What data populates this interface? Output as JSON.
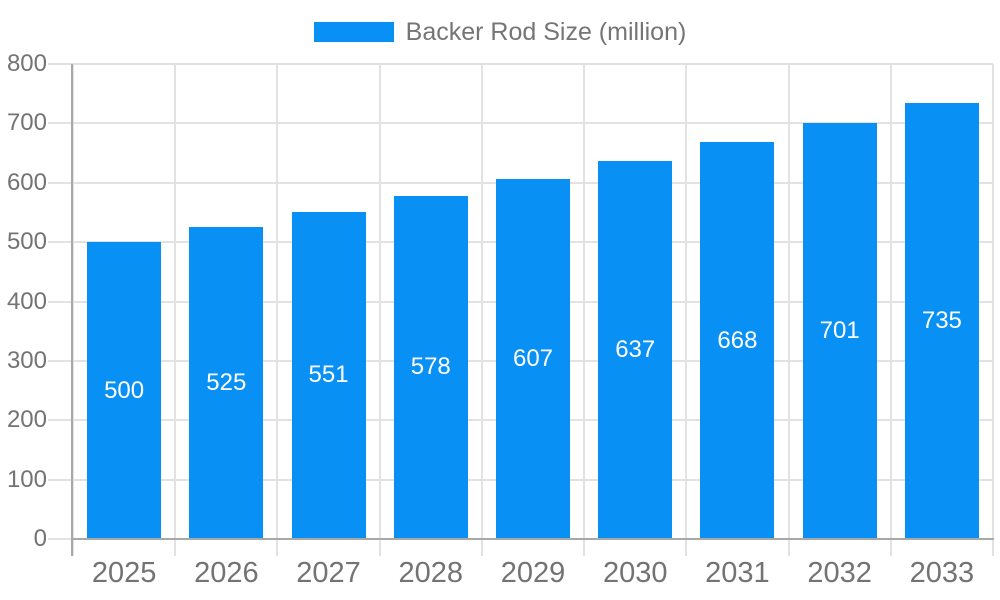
{
  "chart_data": {
    "type": "bar",
    "title": "",
    "legend_label": "Backer Rod Size (million)",
    "legend_position": "top-center",
    "categories": [
      "2025",
      "2026",
      "2027",
      "2028",
      "2029",
      "2030",
      "2031",
      "2032",
      "2033"
    ],
    "series": [
      {
        "name": "Backer Rod Size (million)",
        "values": [
          500,
          525,
          551,
          578,
          607,
          637,
          668,
          701,
          735
        ]
      }
    ],
    "value_labels_shown": true,
    "value_label_position": "center-of-bar",
    "xlabel": "",
    "ylabel": "",
    "ylim": [
      0,
      800
    ],
    "ytick_step": 100,
    "ytick_labels": [
      "0",
      "100",
      "200",
      "300",
      "400",
      "500",
      "600",
      "700",
      "800"
    ],
    "grid": "both",
    "colors": {
      "bar": "#0990f5",
      "grid": "#e2e2e2",
      "axis": "#a8a8a8",
      "tick_label_text": "#737373",
      "legend_text": "#757575",
      "value_label_text": "#ffffff",
      "background": "#ffffff"
    }
  }
}
